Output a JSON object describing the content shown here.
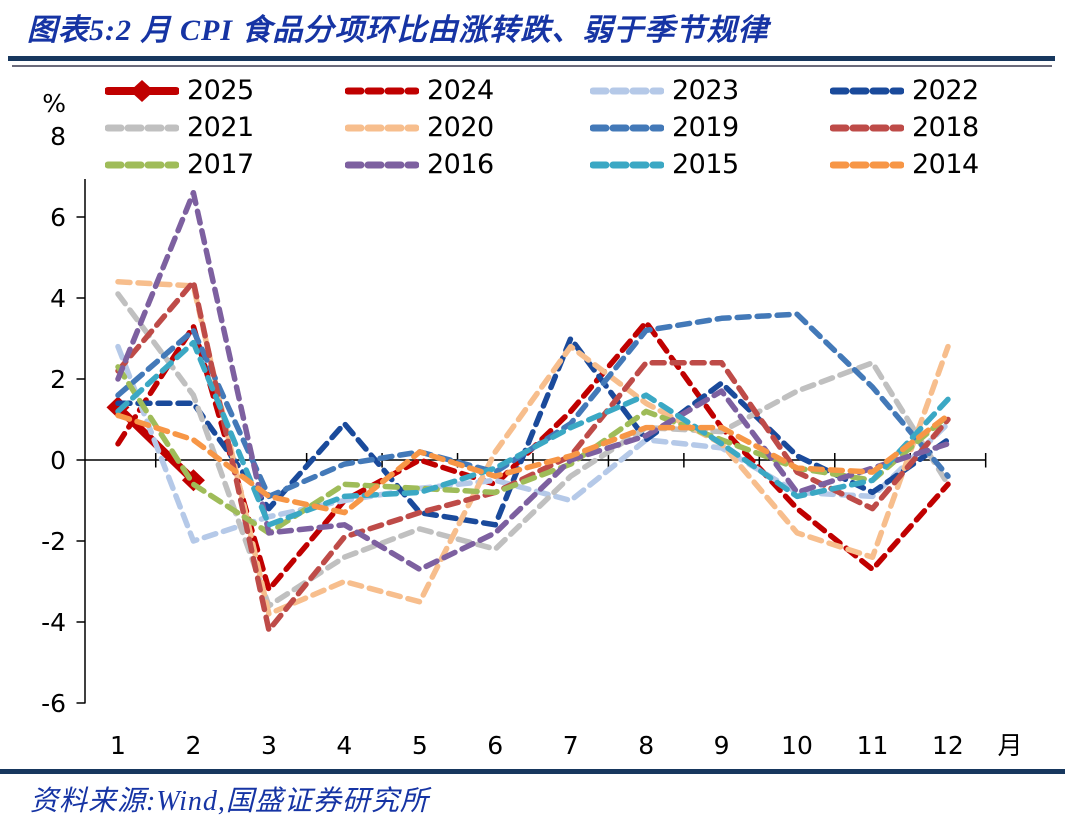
{
  "report": {
    "title": "图表5:2 月 CPI 食品分项环比由涨转跌、弱于季节规律",
    "source_note": "资料来源:Wind,国盛证券研究所"
  },
  "chart_data": {
    "type": "line",
    "unit_label": "%",
    "x_axis_label": "月",
    "x_categories": [
      "1",
      "2",
      "3",
      "4",
      "5",
      "6",
      "7",
      "8",
      "9",
      "10",
      "11",
      "12"
    ],
    "y_ticks": [
      8,
      6,
      4,
      2,
      0,
      -2,
      -4,
      -6
    ],
    "ylim": [
      -6,
      8
    ],
    "grid": "off",
    "legend_position": "top",
    "legend_columns": 4,
    "series": [
      {
        "name": "2025",
        "color": "#C00000",
        "line_style": "solid",
        "marker": "diamond",
        "values": [
          1.3,
          -0.5
        ]
      },
      {
        "name": "2024",
        "color": "#C00000",
        "line_style": "dashed",
        "marker": "none",
        "values": [
          0.4,
          3.3,
          -3.2,
          -1.0,
          0.0,
          -0.6,
          1.2,
          3.4,
          0.8,
          -1.2,
          -2.7,
          -0.6
        ]
      },
      {
        "name": "2023",
        "color": "#B5C9E8",
        "line_style": "dashed",
        "marker": "none",
        "values": [
          2.8,
          -2.0,
          -1.4,
          -1.0,
          -0.7,
          -0.5,
          -1.0,
          0.5,
          0.3,
          -0.8,
          -0.9,
          0.9
        ]
      },
      {
        "name": "2022",
        "color": "#1A4A9B",
        "line_style": "dashed",
        "marker": "none",
        "values": [
          1.4,
          1.4,
          -1.2,
          0.9,
          -1.3,
          -1.6,
          3.0,
          0.5,
          1.9,
          0.1,
          -0.8,
          0.5
        ]
      },
      {
        "name": "2021",
        "color": "#C0C0C0",
        "line_style": "dashed",
        "marker": "none",
        "values": [
          4.1,
          1.6,
          -3.6,
          -2.4,
          -1.7,
          -2.2,
          -0.4,
          0.8,
          0.7,
          1.7,
          2.4,
          -0.6
        ]
      },
      {
        "name": "2020",
        "color": "#F7BE8D",
        "line_style": "dashed",
        "marker": "none",
        "values": [
          4.4,
          4.3,
          -3.8,
          -3.0,
          -3.5,
          0.2,
          2.8,
          1.4,
          0.4,
          -1.8,
          -2.4,
          2.8
        ]
      },
      {
        "name": "2019",
        "color": "#4379B8",
        "line_style": "dashed",
        "marker": "none",
        "values": [
          1.6,
          3.2,
          -0.9,
          -0.1,
          0.2,
          -0.3,
          0.9,
          3.2,
          3.5,
          3.6,
          1.8,
          -0.4
        ]
      },
      {
        "name": "2018",
        "color": "#BE4B48",
        "line_style": "dashed",
        "marker": "none",
        "values": [
          2.2,
          4.4,
          -4.2,
          -1.9,
          -1.3,
          -0.8,
          0.1,
          2.4,
          2.4,
          -0.3,
          -1.2,
          1.0
        ]
      },
      {
        "name": "2017",
        "color": "#9FBC59",
        "line_style": "dashed",
        "marker": "none",
        "values": [
          2.3,
          -0.6,
          -1.8,
          -0.6,
          -0.7,
          -0.8,
          -0.1,
          1.2,
          0.5,
          -0.2,
          -0.5,
          1.1
        ]
      },
      {
        "name": "2016",
        "color": "#7D60A0",
        "line_style": "dashed",
        "marker": "none",
        "values": [
          2.0,
          6.6,
          -1.8,
          -1.6,
          -2.7,
          -1.8,
          0.0,
          0.6,
          1.7,
          -0.8,
          -0.2,
          0.4
        ]
      },
      {
        "name": "2015",
        "color": "#3BA8C4",
        "line_style": "dashed",
        "marker": "none",
        "values": [
          1.2,
          2.9,
          -1.6,
          -0.9,
          -0.8,
          -0.2,
          0.8,
          1.6,
          0.4,
          -0.9,
          -0.5,
          1.5
        ]
      },
      {
        "name": "2014",
        "color": "#F79646",
        "line_style": "dashed",
        "marker": "none",
        "values": [
          1.1,
          0.5,
          -0.9,
          -1.3,
          0.2,
          -0.4,
          0.1,
          0.8,
          0.8,
          -0.2,
          -0.3,
          1.1
        ]
      }
    ]
  },
  "colors": {
    "title_text": "#1634A4",
    "rule_bar": "#17375E",
    "axis": "#000000",
    "highlight_series": "#C00000"
  }
}
